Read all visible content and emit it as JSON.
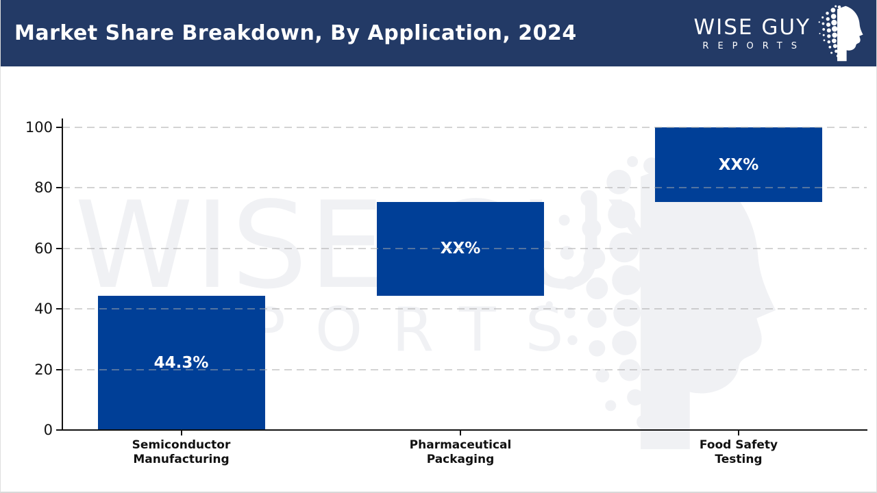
{
  "header": {
    "title": "Market Share Breakdown, By Application, 2024",
    "bg_color": "#233a66",
    "text_color": "#ffffff",
    "logo": {
      "line1": "WISE GUY",
      "line2": "REPORTS"
    }
  },
  "watermark": {
    "line1": "WISE GUY",
    "line2": "REPORTS",
    "color": "#f0f1f4"
  },
  "chart_data": {
    "type": "bar",
    "subtype": "floating-waterfall",
    "title": "Market Share Breakdown, By Application, 2024",
    "categories": [
      [
        "Semiconductor",
        "Manufacturing"
      ],
      [
        "Pharmaceutical",
        "Packaging"
      ],
      [
        "Food Safety",
        "Testing"
      ]
    ],
    "segments": [
      {
        "start": 0,
        "end": 44.3,
        "label": "44.3%"
      },
      {
        "start": 44.3,
        "end": 75.3,
        "label": "XX%"
      },
      {
        "start": 75.3,
        "end": 99.8,
        "label": "XX%"
      }
    ],
    "yticks": [
      0,
      20,
      40,
      60,
      80,
      100
    ],
    "ylim": [
      0,
      105
    ],
    "grid": "dashed-horizontal",
    "legend": "none",
    "bar_color": "#003f97",
    "bar_label_color": "#ffffff",
    "gridline_color": "#d9d9d9",
    "axis_color": "#111111",
    "tick_label_color": "#111111"
  }
}
